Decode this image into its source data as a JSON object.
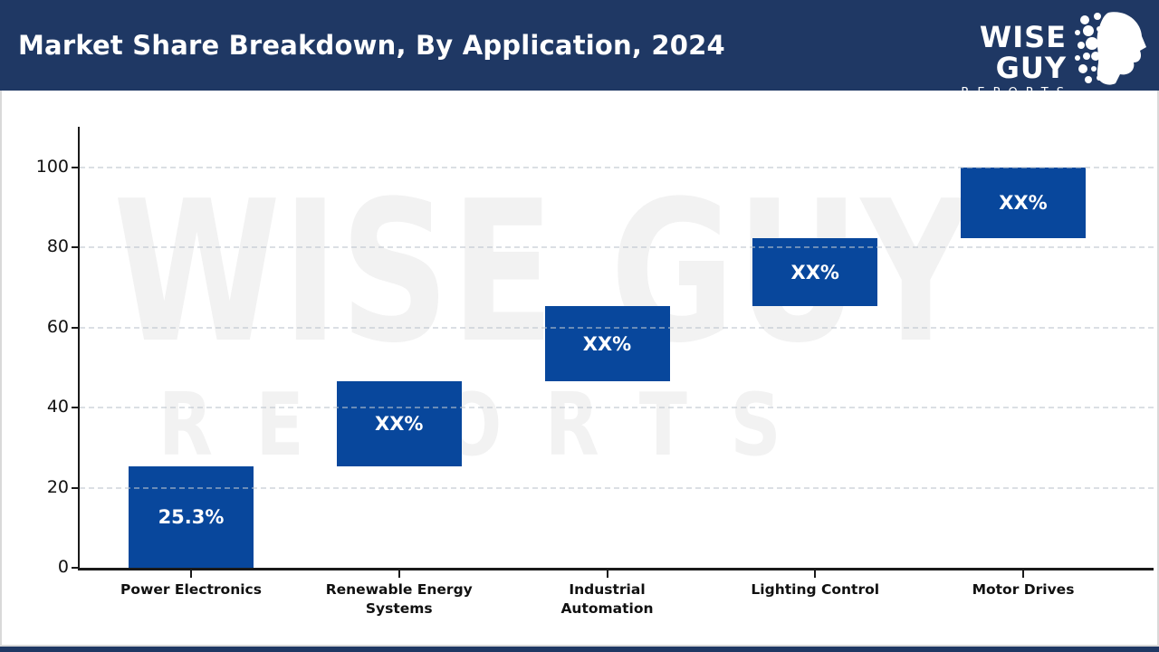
{
  "header": {
    "title": "Market Share Breakdown, By Application, 2024",
    "logo": {
      "line1": "WISE GUY",
      "line2": "REPORTS"
    }
  },
  "colors": {
    "header_bg": "#1f3864",
    "bar": "#08479c",
    "axis": "#1a1a1a",
    "grid": "#dcdcdc",
    "bar_label": "#ffffff",
    "watermark": "#f2f2f2",
    "footer_strip": "#1f3864"
  },
  "watermark": {
    "line1": "WISE GUY",
    "line2": "REPORTS"
  },
  "chart_data": {
    "type": "bar",
    "subtype": "waterfall",
    "title": "Market Share Breakdown, By Application, 2024",
    "categories": [
      "Power Electronics",
      "Renewable Energy Systems",
      "Industrial Automation",
      "Lighting Control",
      "Motor Drives"
    ],
    "series": [
      {
        "name": "Market Share",
        "segments": [
          {
            "category": "Power Electronics",
            "start": 0,
            "end": 25.3,
            "label": "25.3%"
          },
          {
            "category": "Renewable Energy Systems",
            "start": 25.3,
            "end": 46.5,
            "label": "XX%"
          },
          {
            "category": "Industrial Automation",
            "start": 46.5,
            "end": 65.3,
            "label": "XX%"
          },
          {
            "category": "Lighting Control",
            "start": 65.3,
            "end": 82.3,
            "label": "XX%"
          },
          {
            "category": "Motor Drives",
            "start": 82.3,
            "end": 100,
            "label": "XX%"
          }
        ]
      }
    ],
    "ylim": [
      0,
      100
    ],
    "yticks": [
      0,
      20,
      40,
      60,
      80,
      100
    ],
    "xlabel": "",
    "ylabel": "",
    "grid": "horizontal-dashed",
    "legend_position": "none",
    "bar_color": "#08479c"
  }
}
